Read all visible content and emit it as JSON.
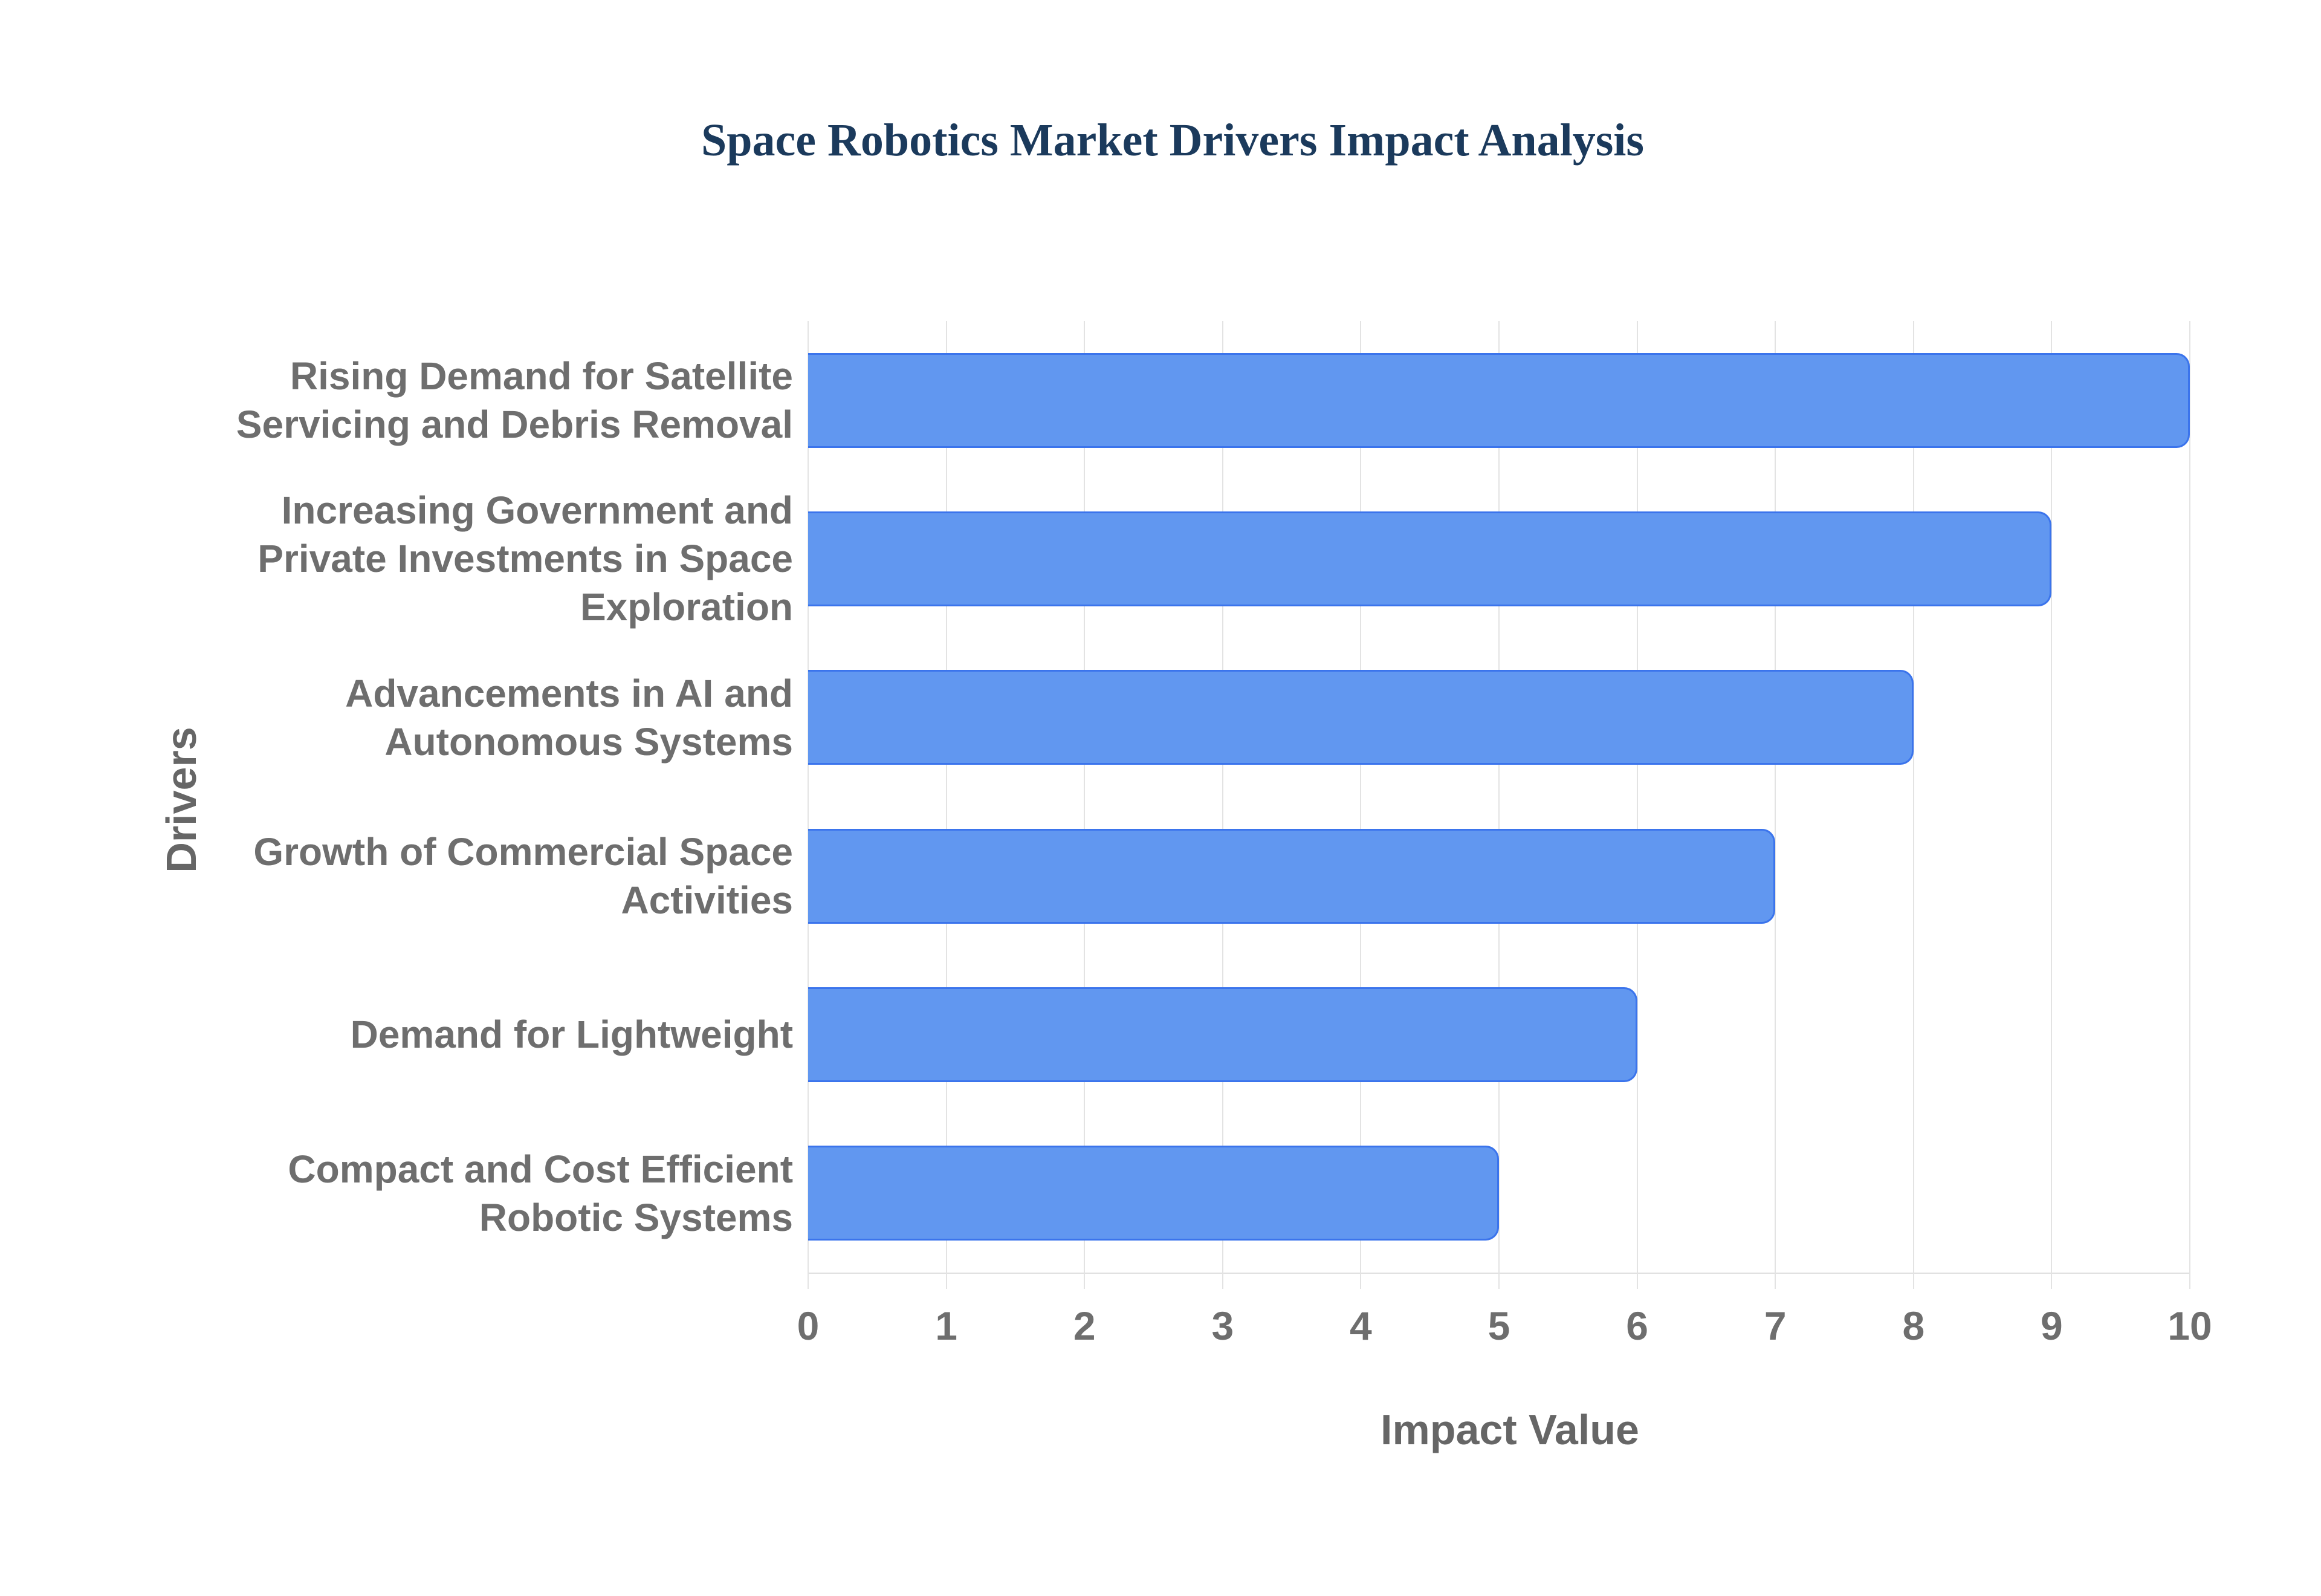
{
  "title": "Space Robotics Market Drivers Impact Analysis",
  "chart_data": {
    "type": "bar",
    "orientation": "horizontal",
    "title": "Space Robotics Market Drivers Impact Analysis",
    "categories": [
      "Rising Demand for Satellite Servicing and Debris Removal",
      "Increasing Government and Private Investments in Space Exploration",
      "Advancements in AI and Autonomous Systems",
      "Growth of Commercial Space Activities",
      "Demand for Lightweight",
      "Compact and Cost Efficient Robotic Systems"
    ],
    "values": [
      10,
      9,
      8,
      7,
      6,
      5
    ],
    "xlabel": "Impact Value",
    "ylabel": "Drivers",
    "xlim": [
      0,
      10
    ],
    "xticks": [
      0,
      1,
      2,
      3,
      4,
      5,
      6,
      7,
      8,
      9,
      10
    ],
    "grid": true,
    "legend": "none",
    "colors": {
      "bar_fill": "#6197f0",
      "bar_border": "#3b74ec",
      "gridline": "#e3e3e3",
      "tick_label": "#6e6e6e",
      "axis_title": "#666666",
      "title": "#1b3a5c",
      "background": "#ffffff"
    }
  }
}
